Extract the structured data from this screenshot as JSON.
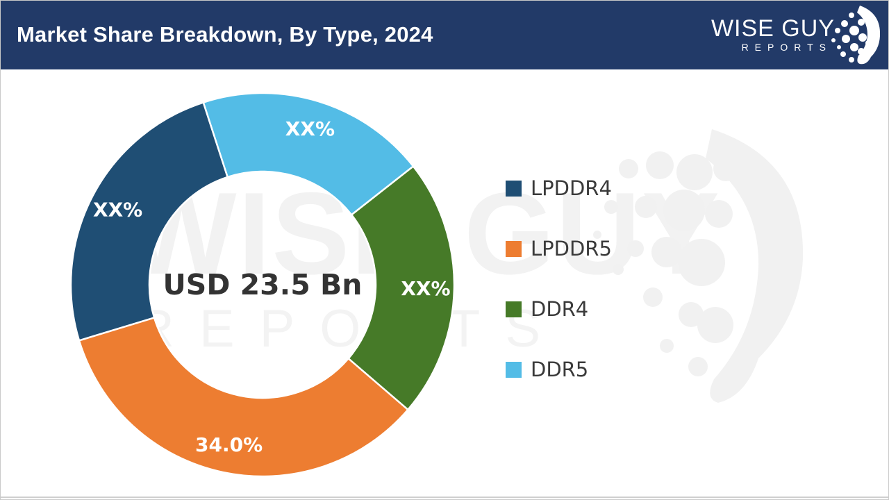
{
  "header": {
    "title": "Market Share Breakdown, By Type, 2024",
    "background_color": "#223A68",
    "logo": {
      "wordmark": "WISE GUY",
      "subtext": "REPORTS"
    }
  },
  "watermark": {
    "wordmark": "WISE GUY",
    "subtext": "REPORTS"
  },
  "chart_data": {
    "type": "pie",
    "subtype": "donut",
    "title": "Market Share Breakdown, By Type, 2024",
    "center_label": "USD 23.5 Bn",
    "start_angle_deg_from_top": -18,
    "direction": "clockwise",
    "inner_radius_ratio": 0.59,
    "segments": [
      {
        "name": "DDR5",
        "label_shown": "XX%",
        "value": 19.4,
        "color": "#53BCE6"
      },
      {
        "name": "DDR4",
        "label_shown": "XX%",
        "value": 21.9,
        "color": "#467A28"
      },
      {
        "name": "LPDDR5",
        "label_shown": "34.0%",
        "value": 34.0,
        "color": "#ED7D31"
      },
      {
        "name": "LPDDR4",
        "label_shown": "XX%",
        "value": 24.7,
        "color": "#1F4E74"
      }
    ],
    "legend": {
      "position": "right",
      "order": [
        "LPDDR4",
        "LPDDR5",
        "DDR4",
        "DDR5"
      ]
    }
  }
}
